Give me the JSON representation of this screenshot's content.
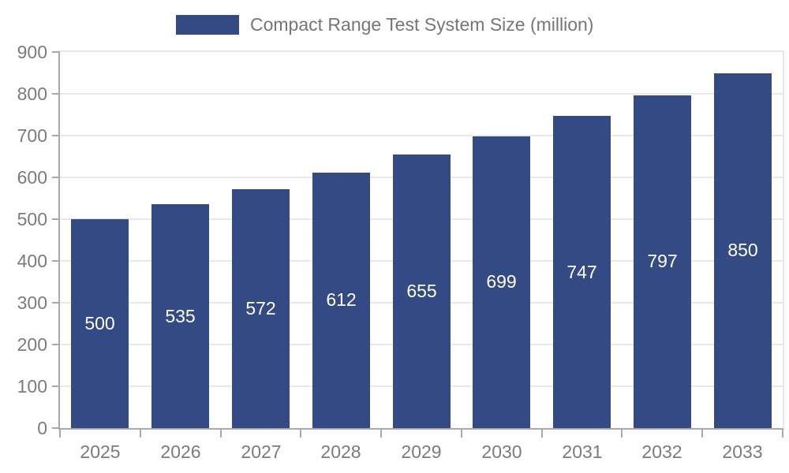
{
  "legend": {
    "label": "Compact Range Test System Size (million)",
    "swatch_color": "#344A85"
  },
  "chart_data": {
    "type": "bar",
    "title": "Compact Range Test System Size (million)",
    "categories": [
      "2025",
      "2026",
      "2027",
      "2028",
      "2029",
      "2030",
      "2031",
      "2032",
      "2033"
    ],
    "values": [
      500,
      535,
      572,
      612,
      655,
      699,
      747,
      797,
      850
    ],
    "series": [
      {
        "name": "Compact Range Test System Size (million)",
        "values": [
          500,
          535,
          572,
          612,
          655,
          699,
          747,
          797,
          850
        ]
      }
    ],
    "xlabel": "",
    "ylabel": "",
    "ylim": [
      0,
      900
    ],
    "y_ticks": [
      0,
      100,
      200,
      300,
      400,
      500,
      600,
      700,
      800,
      900
    ],
    "grid": true,
    "legend_position": "top",
    "bar_color": "#344A85",
    "value_label_color": "#ffffff",
    "value_label_position": "inside-center"
  }
}
